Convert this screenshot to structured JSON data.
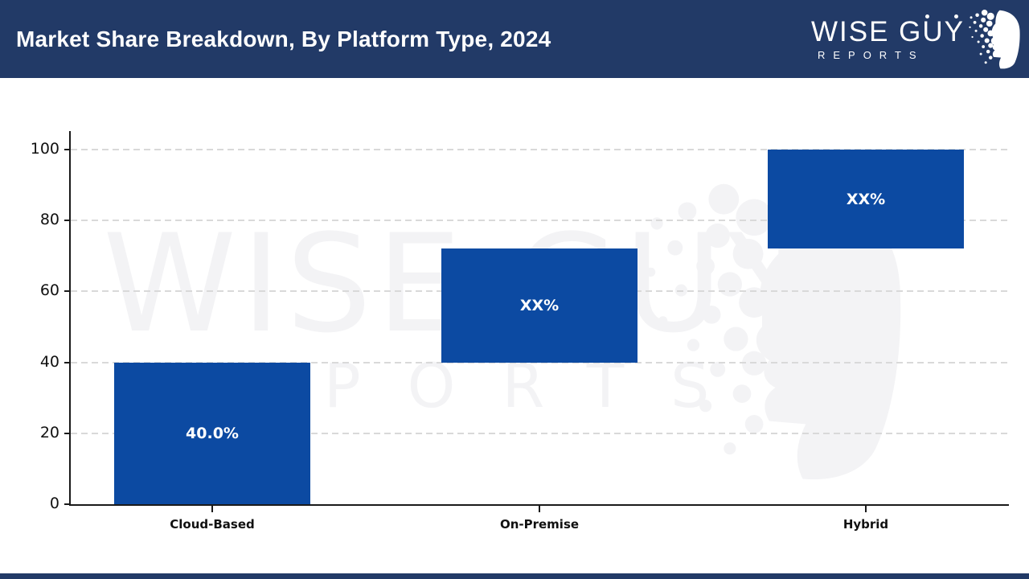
{
  "header": {
    "title": "Market Share Breakdown, By Platform Type, 2024",
    "logo": {
      "brand": "WISE GUY",
      "sub": "REPORTS"
    }
  },
  "watermark": {
    "brand": "WISE GUY",
    "sub": "REPORTS"
  },
  "chart_data": {
    "type": "bar",
    "subtype": "waterfall",
    "title": "Market Share Breakdown, By Platform Type, 2024",
    "categories": [
      "Cloud-Based",
      "On-Premise",
      "Hybrid"
    ],
    "series": [
      {
        "name": "Market Share",
        "segments": [
          {
            "category": "Cloud-Based",
            "start": 0,
            "end": 40,
            "label": "40.0%"
          },
          {
            "category": "On-Premise",
            "start": 40,
            "end": 72,
            "label": "XX%"
          },
          {
            "category": "Hybrid",
            "start": 72,
            "end": 100,
            "label": "XX%"
          }
        ]
      }
    ],
    "xlabel": "",
    "ylabel": "",
    "ylim": [
      0,
      105
    ],
    "yticks": [
      0,
      20,
      40,
      60,
      80,
      100
    ],
    "grid": "horizontal-dashed",
    "legend": "none",
    "colors": {
      "bar": "#0c4aa2",
      "bar_label": "#ffffff",
      "grid": "#d9d9d9",
      "axis": "#1a1a1a",
      "tick_text": "#111111",
      "header_bg": "#223a67",
      "watermark": "#f3f3f5"
    }
  }
}
